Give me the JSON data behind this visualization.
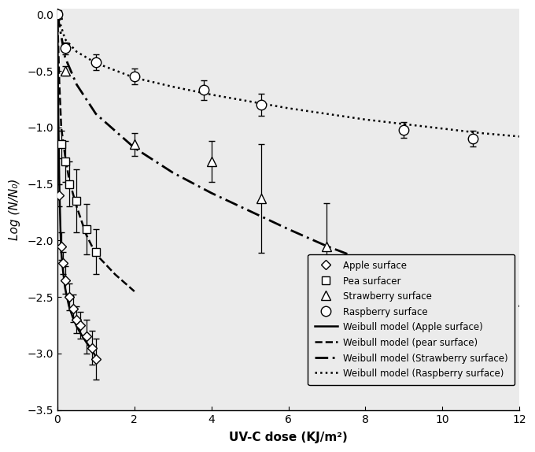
{
  "title": "",
  "xlabel": "UV-C dose (KJ/m²)",
  "ylabel": "Log (N/N₀)",
  "xlim": [
    0,
    12
  ],
  "ylim": [
    -3.5,
    0.05
  ],
  "xticks": [
    0,
    2,
    4,
    6,
    8,
    10,
    12
  ],
  "yticks": [
    0.0,
    -0.5,
    -1.0,
    -1.5,
    -2.0,
    -2.5,
    -3.0,
    -3.5
  ],
  "bg_color": "#ebebeb",
  "fig_color": "#ffffff",
  "apple_x": [
    0.0,
    0.05,
    0.1,
    0.15,
    0.2,
    0.3,
    0.4,
    0.5,
    0.6,
    0.75,
    0.9,
    1.0
  ],
  "apple_y": [
    0.0,
    -1.6,
    -2.05,
    -2.2,
    -2.35,
    -2.5,
    -2.6,
    -2.7,
    -2.75,
    -2.85,
    -2.95,
    -3.05
  ],
  "apple_yerr": [
    0.0,
    0.1,
    0.12,
    0.1,
    0.12,
    0.12,
    0.12,
    0.12,
    0.12,
    0.15,
    0.15,
    0.18
  ],
  "pea_x": [
    0.0,
    0.1,
    0.2,
    0.3,
    0.5,
    0.75,
    1.0
  ],
  "pea_y": [
    0.0,
    -1.15,
    -1.3,
    -1.5,
    -1.65,
    -1.9,
    -2.1
  ],
  "pea_yerr": [
    0.0,
    0.12,
    0.18,
    0.2,
    0.28,
    0.22,
    0.2
  ],
  "strawberry_x": [
    0.0,
    0.2,
    2.0,
    4.0,
    5.3,
    7.0
  ],
  "strawberry_y": [
    0.0,
    -0.5,
    -1.15,
    -1.3,
    -1.63,
    -2.05
  ],
  "strawberry_yerr": [
    0.0,
    0.04,
    0.1,
    0.18,
    0.48,
    0.38
  ],
  "raspberry_x": [
    0.0,
    0.2,
    1.0,
    2.0,
    3.8,
    5.3,
    9.0,
    10.8
  ],
  "raspberry_y": [
    0.0,
    -0.3,
    -0.42,
    -0.55,
    -0.67,
    -0.8,
    -1.02,
    -1.1
  ],
  "raspberry_yerr": [
    0.0,
    0.05,
    0.07,
    0.07,
    0.09,
    0.1,
    0.07,
    0.07
  ],
  "apple_model_x": [
    0.0,
    0.02,
    0.05,
    0.08,
    0.1,
    0.15,
    0.2,
    0.3,
    0.4,
    0.5,
    0.6,
    0.75,
    0.9,
    1.0
  ],
  "apple_model_y": [
    0.0,
    -0.8,
    -1.5,
    -1.9,
    -2.1,
    -2.28,
    -2.42,
    -2.58,
    -2.68,
    -2.76,
    -2.82,
    -2.9,
    -2.97,
    -3.03
  ],
  "pear_model_x": [
    0.0,
    0.05,
    0.1,
    0.2,
    0.3,
    0.4,
    0.5,
    0.6,
    0.75,
    1.0,
    1.5,
    2.0
  ],
  "pear_model_y": [
    0.0,
    -0.6,
    -1.0,
    -1.25,
    -1.45,
    -1.58,
    -1.7,
    -1.8,
    -1.95,
    -2.12,
    -2.3,
    -2.45
  ],
  "strawberry_model_x": [
    0.0,
    0.2,
    0.5,
    1.0,
    2.0,
    3.0,
    4.0,
    5.0,
    6.0,
    7.0,
    8.0,
    10.0,
    12.0
  ],
  "strawberry_model_y": [
    0.0,
    -0.38,
    -0.62,
    -0.88,
    -1.18,
    -1.4,
    -1.58,
    -1.74,
    -1.9,
    -2.05,
    -2.18,
    -2.4,
    -2.58
  ],
  "raspberry_model_x": [
    0.0,
    0.2,
    0.5,
    1.0,
    2.0,
    3.0,
    4.0,
    5.0,
    6.0,
    7.0,
    8.0,
    9.0,
    10.0,
    11.0,
    12.0
  ],
  "raspberry_model_y": [
    0.0,
    -0.22,
    -0.33,
    -0.43,
    -0.56,
    -0.64,
    -0.71,
    -0.77,
    -0.83,
    -0.88,
    -0.93,
    -0.97,
    -1.01,
    -1.05,
    -1.08
  ],
  "legend_labels": [
    "Apple surface",
    "Pea surfacer",
    "Strawberry surface",
    "Raspberry surface",
    "Weibull model (Apple surface)",
    "Weibull model (pear surface)",
    "Weibull model (Strawberry surface)",
    "Weibull model (Raspberry surface)"
  ]
}
